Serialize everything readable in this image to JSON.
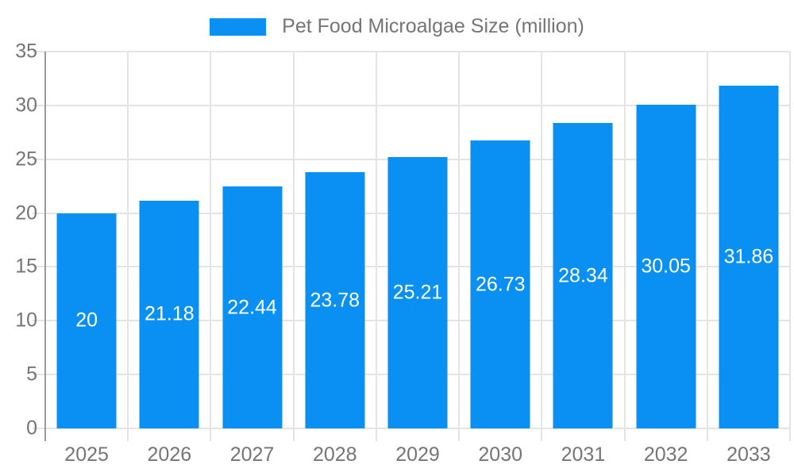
{
  "legend": {
    "label": "Pet Food Microalgae Size (million)"
  },
  "chart_data": {
    "type": "bar",
    "title": "Pet Food Microalgae Size (million)",
    "legend_entries": [
      "Pet Food Microalgae Size (million)"
    ],
    "legend_position": "top-center",
    "categories": [
      "2025",
      "2026",
      "2027",
      "2028",
      "2029",
      "2030",
      "2031",
      "2032",
      "2033"
    ],
    "values": [
      20,
      21.18,
      22.44,
      23.78,
      25.21,
      26.73,
      28.34,
      30.05,
      31.86
    ],
    "value_labels": [
      "20",
      "21.18",
      "22.44",
      "23.78",
      "25.21",
      "26.73",
      "28.34",
      "30.05",
      "31.86"
    ],
    "xlabel": "",
    "ylabel": "",
    "ylim": [
      0,
      35
    ],
    "ytick_interval": 5,
    "ytick_labels": [
      "0",
      "5",
      "10",
      "15",
      "20",
      "25",
      "30",
      "35"
    ],
    "grid": true,
    "colors": {
      "bar": "#0a8ff2",
      "grid": "#e4e4e4",
      "axis": "#9a9a9a",
      "text": "#757575",
      "vlabel": "#ffffff"
    }
  }
}
